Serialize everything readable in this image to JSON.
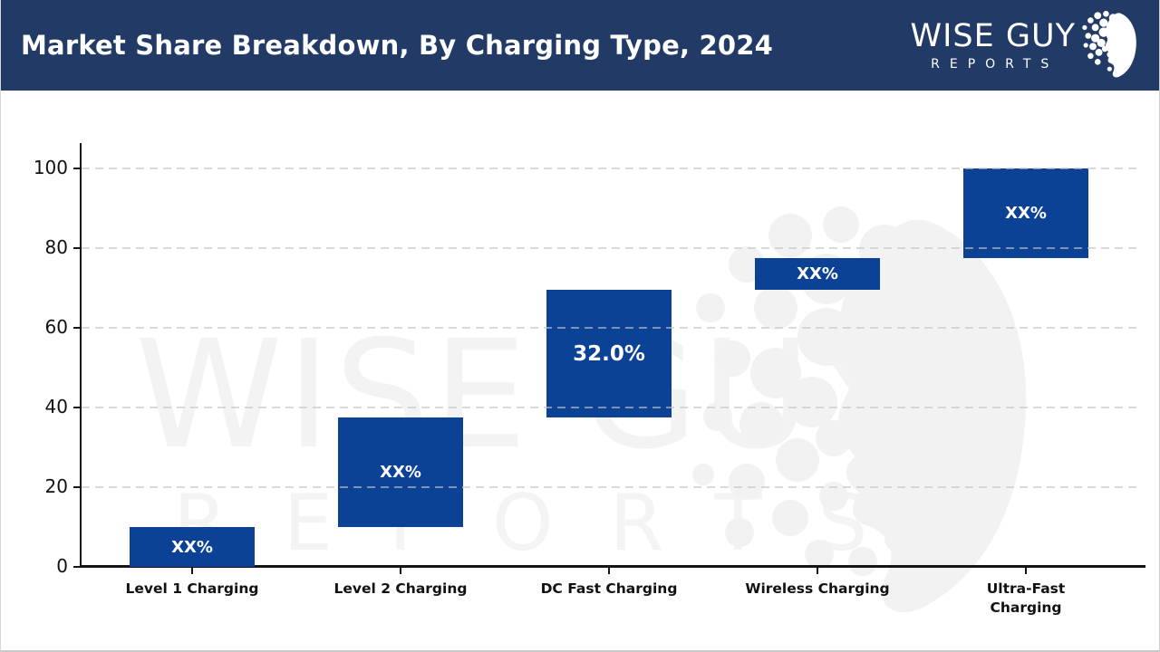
{
  "header": {
    "title": "Market Share Breakdown, By Charging Type, 2024",
    "logo": {
      "line1": "WISE GUY",
      "line2": "REPORTS"
    }
  },
  "watermark": {
    "line1": "WISE GUY",
    "line2": "REPORTS"
  },
  "colors": {
    "header_bg": "#223A66",
    "bar_blue": "#0B4295",
    "bar_label_text": "#ffffff",
    "axis_black": "#151515",
    "gridline_gray": "#c4c4c4",
    "watermark_gray": "#f3f3f3"
  },
  "chart_data": {
    "type": "bar",
    "subtype": "waterfall",
    "title": "Market Share Breakdown, By Charging Type, 2024",
    "xlabel": "",
    "ylabel": "",
    "ylim": [
      0,
      105
    ],
    "y_ticks": [
      0,
      20,
      40,
      60,
      80,
      100
    ],
    "grid": "horizontal-dashed",
    "legend": "none",
    "categories": [
      "Level 1 Charging",
      "Level 2 Charging",
      "DC Fast Charging",
      "Wireless Charging",
      "Ultra-Fast\nCharging"
    ],
    "segments": [
      {
        "category": "Level 1 Charging",
        "start": 0,
        "end": 10,
        "value": 10,
        "value_label": "XX%",
        "emphasis": false
      },
      {
        "category": "Level 2 Charging",
        "start": 10,
        "end": 37.5,
        "value": 27.5,
        "value_label": "XX%",
        "emphasis": false
      },
      {
        "category": "DC Fast Charging",
        "start": 37.5,
        "end": 69.5,
        "value": 32.0,
        "value_label": "32.0%",
        "emphasis": true
      },
      {
        "category": "Wireless Charging",
        "start": 69.5,
        "end": 77.5,
        "value": 8,
        "value_label": "XX%",
        "emphasis": false
      },
      {
        "category": "Ultra-Fast\nCharging",
        "start": 77.5,
        "end": 100,
        "value": 22.5,
        "value_label": "XX%",
        "emphasis": false
      }
    ]
  }
}
